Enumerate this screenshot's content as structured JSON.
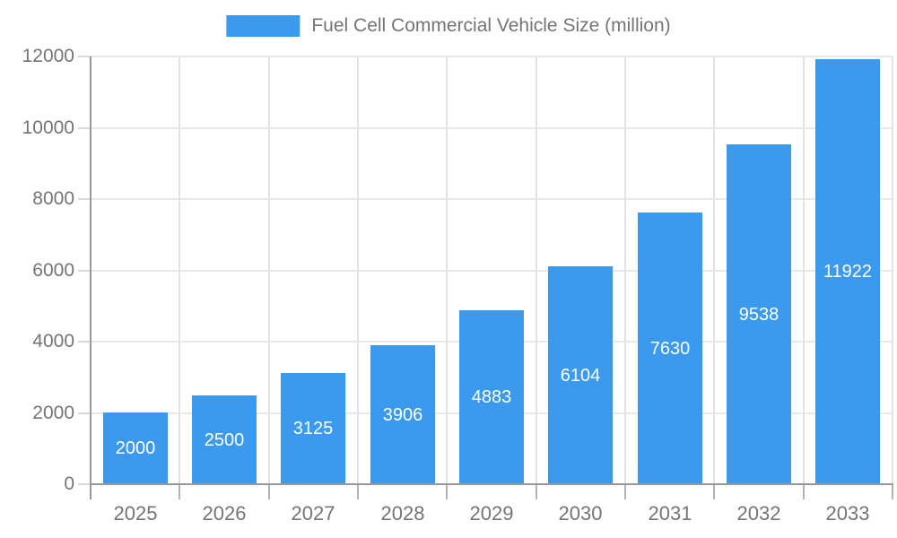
{
  "legend": {
    "label": "Fuel Cell Commercial Vehicle Size (million)"
  },
  "chart_data": {
    "type": "bar",
    "title": "Fuel Cell Commercial Vehicle Size (million)",
    "categories": [
      "2025",
      "2026",
      "2027",
      "2028",
      "2029",
      "2030",
      "2031",
      "2032",
      "2033"
    ],
    "values": [
      2000,
      2500,
      3125,
      3906,
      4883,
      6104,
      7630,
      9538,
      11922
    ],
    "xlabel": "",
    "ylabel": "",
    "ylim": [
      0,
      12000
    ],
    "yticks": [
      0,
      2000,
      4000,
      6000,
      8000,
      10000,
      12000
    ],
    "grid": true,
    "legend_position": "top",
    "value_labels": "inside-center"
  },
  "colors": {
    "bar": "#3c9aee",
    "axis": "#999999",
    "grid_h": "#e8e8e8",
    "grid_v": "#e3e3e3",
    "tick_y": "#d9d9d9",
    "tick_x": "#b3b3b3",
    "text": "#757575",
    "value_label": "#ffffff",
    "background": "#ffffff"
  }
}
